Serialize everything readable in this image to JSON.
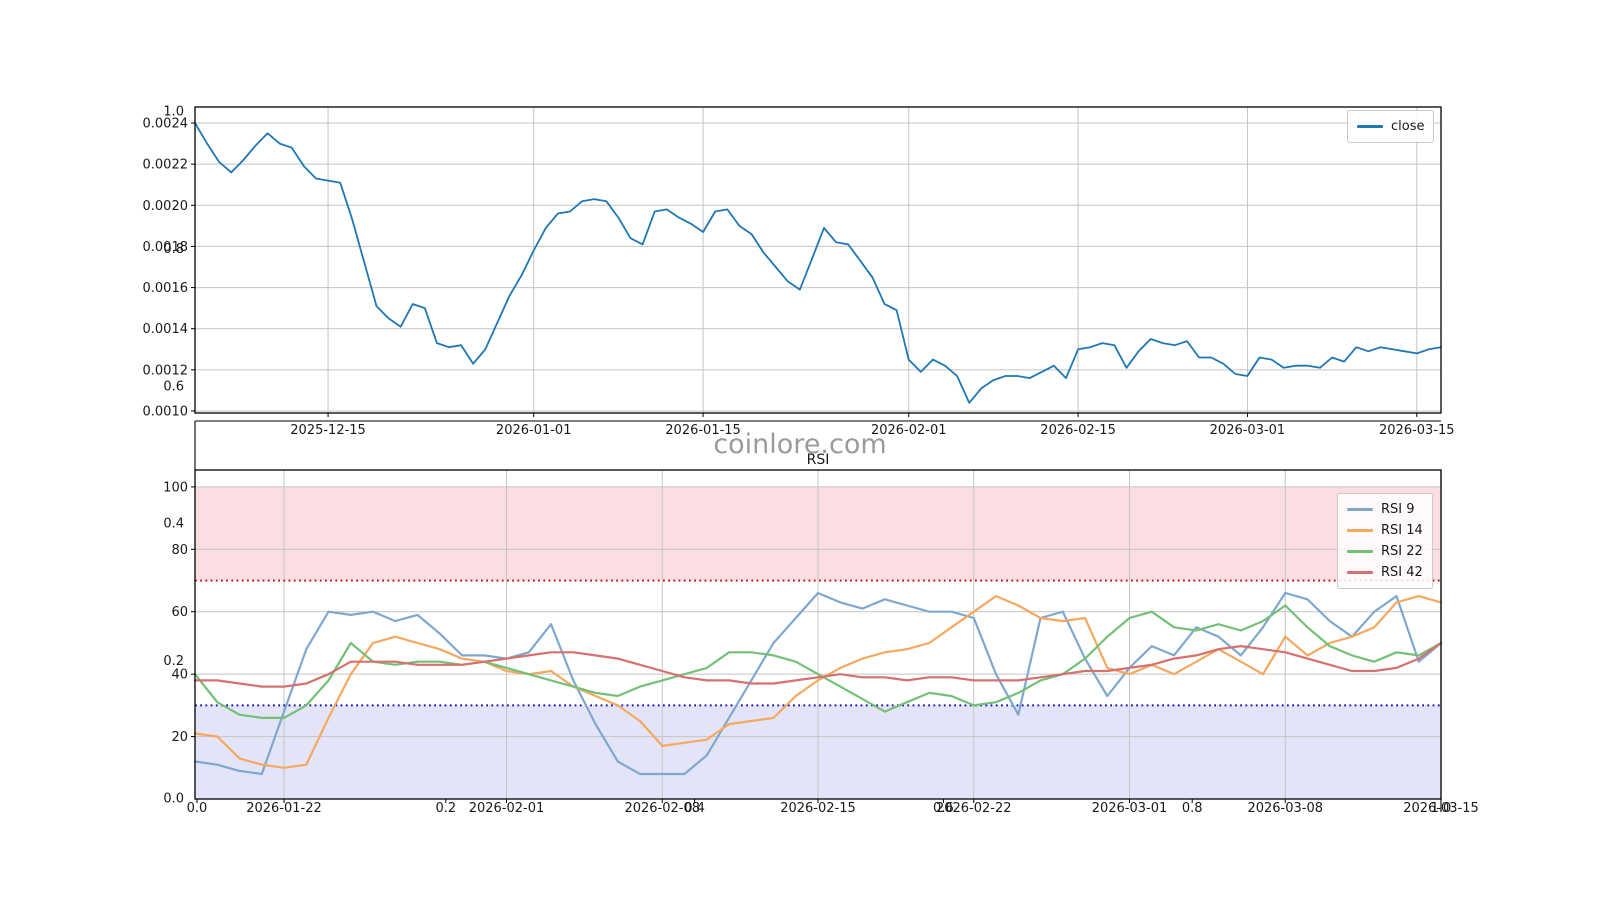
{
  "watermark": "coinlore.com",
  "price_chart": {
    "legend": [
      {
        "label": "close",
        "color": "#1f77b4"
      }
    ],
    "y_tick_labels": [
      "0.0024",
      "0.0022",
      "0.0020",
      "0.0018",
      "0.0016",
      "0.0014",
      "0.0012",
      "0.0010"
    ],
    "x_tick_labels": [
      "2025-12-15",
      "2026-01-01",
      "2026-01-15",
      "2026-02-01",
      "2026-02-15",
      "2026-03-01",
      "2026-03-15"
    ]
  },
  "rsi_chart": {
    "title": "RSI",
    "legend": [
      {
        "label": "RSI 9",
        "color": "#7fa8ce"
      },
      {
        "label": "RSI 14",
        "color": "#f5a85f"
      },
      {
        "label": "RSI 22",
        "color": "#74c076"
      },
      {
        "label": "RSI 42",
        "color": "#d5716e"
      }
    ],
    "y_tick_labels": [
      "100",
      "80",
      "60",
      "40",
      "20"
    ],
    "x_tick_labels": [
      "2026-01-22",
      "2026-02-01",
      "2026-02-08",
      "2026-02-15",
      "2026-02-22",
      "2026-03-01",
      "2026-03-08",
      "2026-03-15"
    ],
    "overbought_level": 70,
    "oversold_level": 30
  },
  "overlay_axis": {
    "x_tick_labels": [
      "0.0",
      "0.2",
      "0.4",
      "0.6",
      "0.8",
      "1.0"
    ],
    "y_tick_labels": [
      "1.0",
      "0.8",
      "0.6",
      "0.4",
      "0.2",
      "0.0"
    ]
  },
  "colors": {
    "close": "#1f77b4",
    "rsi9": "#7fa8ce",
    "rsi14": "#f5a85f",
    "rsi22": "#74c076",
    "rsi42": "#d5716e",
    "overbought_band": "#fbdee2",
    "oversold_band": "#e4e4f9",
    "overbought_line": "#cc0000",
    "oversold_line": "#1111bb",
    "grid": "#c4c4c4",
    "spine": "#000000",
    "text": "#1a1a1a",
    "watermark_color": "#8a8a8a"
  },
  "chart_data": [
    {
      "type": "line",
      "title": "",
      "ylabel": "",
      "ylim": [
        0.001,
        0.00248
      ],
      "legend_position": "upper right",
      "grid": true,
      "x": [
        "2025-12-04",
        "2025-12-05",
        "2025-12-06",
        "2025-12-07",
        "2025-12-08",
        "2025-12-09",
        "2025-12-10",
        "2025-12-11",
        "2025-12-12",
        "2025-12-13",
        "2025-12-14",
        "2025-12-15",
        "2025-12-16",
        "2025-12-17",
        "2025-12-18",
        "2025-12-19",
        "2025-12-20",
        "2025-12-21",
        "2025-12-22",
        "2025-12-23",
        "2025-12-24",
        "2025-12-25",
        "2025-12-26",
        "2025-12-27",
        "2025-12-28",
        "2025-12-29",
        "2025-12-30",
        "2025-12-31",
        "2026-01-01",
        "2026-01-02",
        "2026-01-03",
        "2026-01-04",
        "2026-01-05",
        "2026-01-06",
        "2026-01-07",
        "2026-01-08",
        "2026-01-09",
        "2026-01-10",
        "2026-01-11",
        "2026-01-12",
        "2026-01-13",
        "2026-01-14",
        "2026-01-15",
        "2026-01-16",
        "2026-01-17",
        "2026-01-18",
        "2026-01-19",
        "2026-01-20",
        "2026-01-21",
        "2026-01-22",
        "2026-01-23",
        "2026-01-24",
        "2026-01-25",
        "2026-01-26",
        "2026-01-27",
        "2026-01-28",
        "2026-01-29",
        "2026-01-30",
        "2026-01-31",
        "2026-02-01",
        "2026-02-02",
        "2026-02-03",
        "2026-02-04",
        "2026-02-05",
        "2026-02-06",
        "2026-02-07",
        "2026-02-08",
        "2026-02-09",
        "2026-02-10",
        "2026-02-11",
        "2026-02-12",
        "2026-02-13",
        "2026-02-14",
        "2026-02-15",
        "2026-02-16",
        "2026-02-17",
        "2026-02-18",
        "2026-02-19",
        "2026-02-20",
        "2026-02-21",
        "2026-02-22",
        "2026-02-23",
        "2026-02-24",
        "2026-02-25",
        "2026-02-26",
        "2026-02-27",
        "2026-02-28",
        "2026-03-01",
        "2026-03-02",
        "2026-03-03",
        "2026-03-04",
        "2026-03-05",
        "2026-03-06",
        "2026-03-07",
        "2026-03-08",
        "2026-03-09",
        "2026-03-10",
        "2026-03-11",
        "2026-03-12",
        "2026-03-13",
        "2026-03-14",
        "2026-03-15",
        "2026-03-16",
        "2026-03-17"
      ],
      "series": [
        {
          "name": "close",
          "color": "#1f77b4",
          "values": [
            0.0024,
            0.0023,
            0.00221,
            0.00216,
            0.00222,
            0.00229,
            0.00235,
            0.0023,
            0.00228,
            0.00219,
            0.00213,
            0.00212,
            0.00211,
            0.00193,
            0.00172,
            0.00151,
            0.00145,
            0.00141,
            0.00152,
            0.0015,
            0.00133,
            0.00131,
            0.00132,
            0.00123,
            0.0013,
            0.00143,
            0.00156,
            0.00166,
            0.00178,
            0.00189,
            0.00196,
            0.00197,
            0.00202,
            0.00203,
            0.00202,
            0.00194,
            0.00184,
            0.00181,
            0.00197,
            0.00198,
            0.00194,
            0.00191,
            0.00187,
            0.00197,
            0.00198,
            0.0019,
            0.00186,
            0.00177,
            0.0017,
            0.00163,
            0.00159,
            0.00174,
            0.00189,
            0.00182,
            0.00181,
            0.00173,
            0.00165,
            0.00152,
            0.00149,
            0.00125,
            0.00119,
            0.00125,
            0.00122,
            0.00117,
            0.00104,
            0.00111,
            0.00115,
            0.00117,
            0.00117,
            0.00116,
            0.00119,
            0.00122,
            0.00116,
            0.0013,
            0.00131,
            0.00133,
            0.00132,
            0.00121,
            0.00129,
            0.00135,
            0.00133,
            0.00132,
            0.00134,
            0.00126,
            0.00126,
            0.00123,
            0.00118,
            0.00117,
            0.00126,
            0.00125,
            0.00121,
            0.00122,
            0.00122,
            0.00121,
            0.00126,
            0.00124,
            0.00131,
            0.00129,
            0.00131,
            0.0013,
            0.00129,
            0.00128,
            0.0013,
            0.00131
          ]
        }
      ]
    },
    {
      "type": "line",
      "title": "RSI",
      "ylim": [
        0,
        105
      ],
      "grid": true,
      "legend_position": "upper right",
      "hlines": [
        {
          "y": 70,
          "style": "dotted",
          "color": "#cc0000"
        },
        {
          "y": 30,
          "style": "dotted",
          "color": "#1111bb"
        }
      ],
      "bands": [
        {
          "from": 70,
          "to": 100,
          "color": "#fbdee2"
        },
        {
          "from": 0,
          "to": 30,
          "color": "#e4e4f9"
        }
      ],
      "x": [
        "2026-01-18",
        "2026-01-19",
        "2026-01-20",
        "2026-01-21",
        "2026-01-22",
        "2026-01-23",
        "2026-01-24",
        "2026-01-25",
        "2026-01-26",
        "2026-01-27",
        "2026-01-28",
        "2026-01-29",
        "2026-01-30",
        "2026-01-31",
        "2026-02-01",
        "2026-02-02",
        "2026-02-03",
        "2026-02-04",
        "2026-02-05",
        "2026-02-06",
        "2026-02-07",
        "2026-02-08",
        "2026-02-09",
        "2026-02-10",
        "2026-02-11",
        "2026-02-12",
        "2026-02-13",
        "2026-02-14",
        "2026-02-15",
        "2026-02-16",
        "2026-02-17",
        "2026-02-18",
        "2026-02-19",
        "2026-02-20",
        "2026-02-21",
        "2026-02-22",
        "2026-02-23",
        "2026-02-24",
        "2026-02-25",
        "2026-02-26",
        "2026-02-27",
        "2026-02-28",
        "2026-03-01",
        "2026-03-02",
        "2026-03-03",
        "2026-03-04",
        "2026-03-05",
        "2026-03-06",
        "2026-03-07",
        "2026-03-08",
        "2026-03-09",
        "2026-03-10",
        "2026-03-11",
        "2026-03-12",
        "2026-03-13",
        "2026-03-14",
        "2026-03-15"
      ],
      "series": [
        {
          "name": "RSI 9",
          "color": "#7fa8ce",
          "values": [
            12,
            11,
            9,
            8,
            28,
            48,
            60,
            59,
            60,
            57,
            59,
            53,
            46,
            46,
            45,
            47,
            56,
            38,
            24,
            12,
            8,
            8,
            8,
            14,
            26,
            38,
            50,
            58,
            66,
            63,
            61,
            64,
            62,
            60,
            60,
            58,
            40,
            27,
            58,
            60,
            45,
            33,
            42,
            49,
            46,
            55,
            52,
            46,
            55,
            66,
            64,
            57,
            52,
            60,
            65,
            44,
            50
          ]
        },
        {
          "name": "RSI 14",
          "color": "#f5a85f",
          "values": [
            21,
            20,
            13,
            11,
            10,
            11,
            26,
            40,
            50,
            52,
            50,
            48,
            45,
            44,
            41,
            40,
            41,
            36,
            33,
            30,
            25,
            17,
            18,
            19,
            24,
            25,
            26,
            33,
            38,
            42,
            45,
            47,
            48,
            50,
            55,
            60,
            65,
            62,
            58,
            57,
            58,
            42,
            40,
            43,
            40,
            44,
            48,
            44,
            40,
            52,
            46,
            50,
            52,
            55,
            63,
            65,
            63
          ]
        },
        {
          "name": "RSI 22",
          "color": "#74c076",
          "values": [
            40,
            31,
            27,
            26,
            26,
            30,
            38,
            50,
            44,
            43,
            44,
            44,
            43,
            44,
            42,
            40,
            38,
            36,
            34,
            33,
            36,
            38,
            40,
            42,
            47,
            47,
            46,
            44,
            40,
            36,
            32,
            28,
            31,
            34,
            33,
            30,
            31,
            34,
            38,
            40,
            45,
            52,
            58,
            60,
            55,
            54,
            56,
            54,
            57,
            62,
            55,
            49,
            46,
            44,
            47,
            46,
            50
          ]
        },
        {
          "name": "RSI 42",
          "color": "#d5716e",
          "values": [
            38,
            38,
            37,
            36,
            36,
            37,
            40,
            44,
            44,
            44,
            43,
            43,
            43,
            44,
            45,
            46,
            47,
            47,
            46,
            45,
            43,
            41,
            39,
            38,
            38,
            37,
            37,
            38,
            39,
            40,
            39,
            39,
            38,
            39,
            39,
            38,
            38,
            38,
            39,
            40,
            41,
            41,
            42,
            43,
            45,
            46,
            48,
            49,
            48,
            47,
            45,
            43,
            41,
            41,
            42,
            45,
            50
          ]
        }
      ]
    }
  ]
}
